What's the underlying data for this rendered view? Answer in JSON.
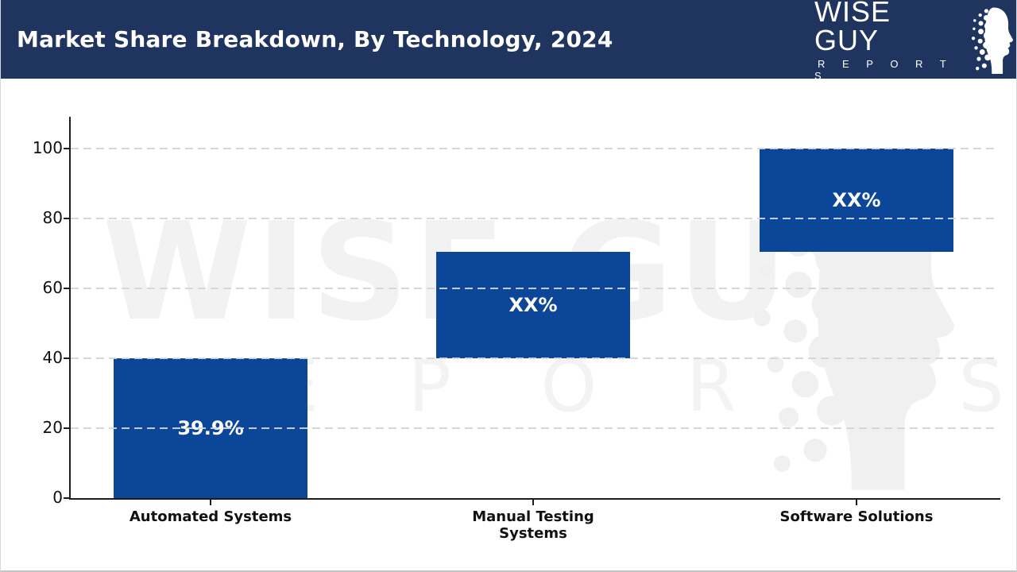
{
  "header": {
    "title": "Market Share Breakdown, By Technology, 2024",
    "logo": {
      "line1": "WISE GUY",
      "line2": "R E P O R T S"
    }
  },
  "watermark": {
    "line1": "WISE GUY",
    "line2": "R E P O R T S"
  },
  "chart_data": {
    "type": "bar",
    "subtype": "waterfall-segments",
    "title": "Market Share Breakdown, By Technology, 2024",
    "categories": [
      "Automated Systems",
      "Manual Testing\nSystems",
      "Software Solutions"
    ],
    "segments": [
      {
        "category": "Automated Systems",
        "start": 0,
        "end": 39.9,
        "label": "39.9%"
      },
      {
        "category": "Manual Testing Systems",
        "start": 40,
        "end": 70.4,
        "label": "XX%"
      },
      {
        "category": "Software Solutions",
        "start": 70.4,
        "end": 100,
        "label": "XX%"
      }
    ],
    "yticks": [
      0,
      20,
      40,
      60,
      80,
      100
    ],
    "ylim": [
      0,
      100
    ],
    "xlabel": "",
    "ylabel": "",
    "grid": "horizontal-dashed-over-bars",
    "legend": "none",
    "bar_color": "#0b4699",
    "bar_label_color": "#ffffff"
  },
  "colors": {
    "header_bg": "#1f3560",
    "bar": "#0b4699",
    "grid": "#d6d6d6",
    "axis": "#1c1c1c",
    "tick_text": "#111111",
    "watermark": "#f2f2f2"
  }
}
